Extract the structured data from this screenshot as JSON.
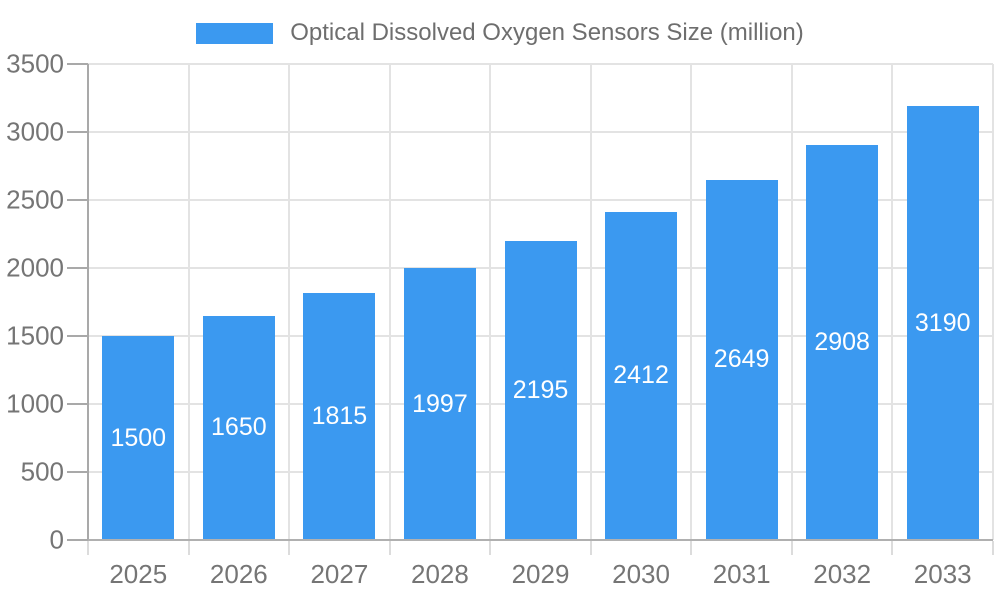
{
  "legend": {
    "label": "Optical Dissolved Oxygen Sensors Size (million)"
  },
  "colors": {
    "bar": "#3B99F0",
    "grid": "#e3e3e3",
    "axis_line": "#a9a9a9",
    "x_axis_line": "#b0b0b0",
    "x_tick": "#dcdcdc",
    "axis_text": "#757575",
    "legend_text": "#6e6e6e",
    "bar_label_text": "#ffffff",
    "background": "#ffffff"
  },
  "chart_data": {
    "type": "bar",
    "title": "Optical Dissolved Oxygen Sensors Size (million)",
    "series": [
      {
        "name": "Optical Dissolved Oxygen Sensors Size (million)",
        "values": [
          1500,
          1650,
          1815,
          1997,
          2195,
          2412,
          2649,
          2908,
          3190
        ]
      }
    ],
    "categories": [
      "2025",
      "2026",
      "2027",
      "2028",
      "2029",
      "2030",
      "2031",
      "2032",
      "2033"
    ],
    "xlabel": "",
    "ylabel": "",
    "ylim": [
      0,
      3500
    ],
    "yticks": [
      0,
      500,
      1000,
      1500,
      2000,
      2500,
      3000,
      3500
    ],
    "grid": true,
    "legend_position": "top-center",
    "value_labels": "inside-center-white"
  }
}
